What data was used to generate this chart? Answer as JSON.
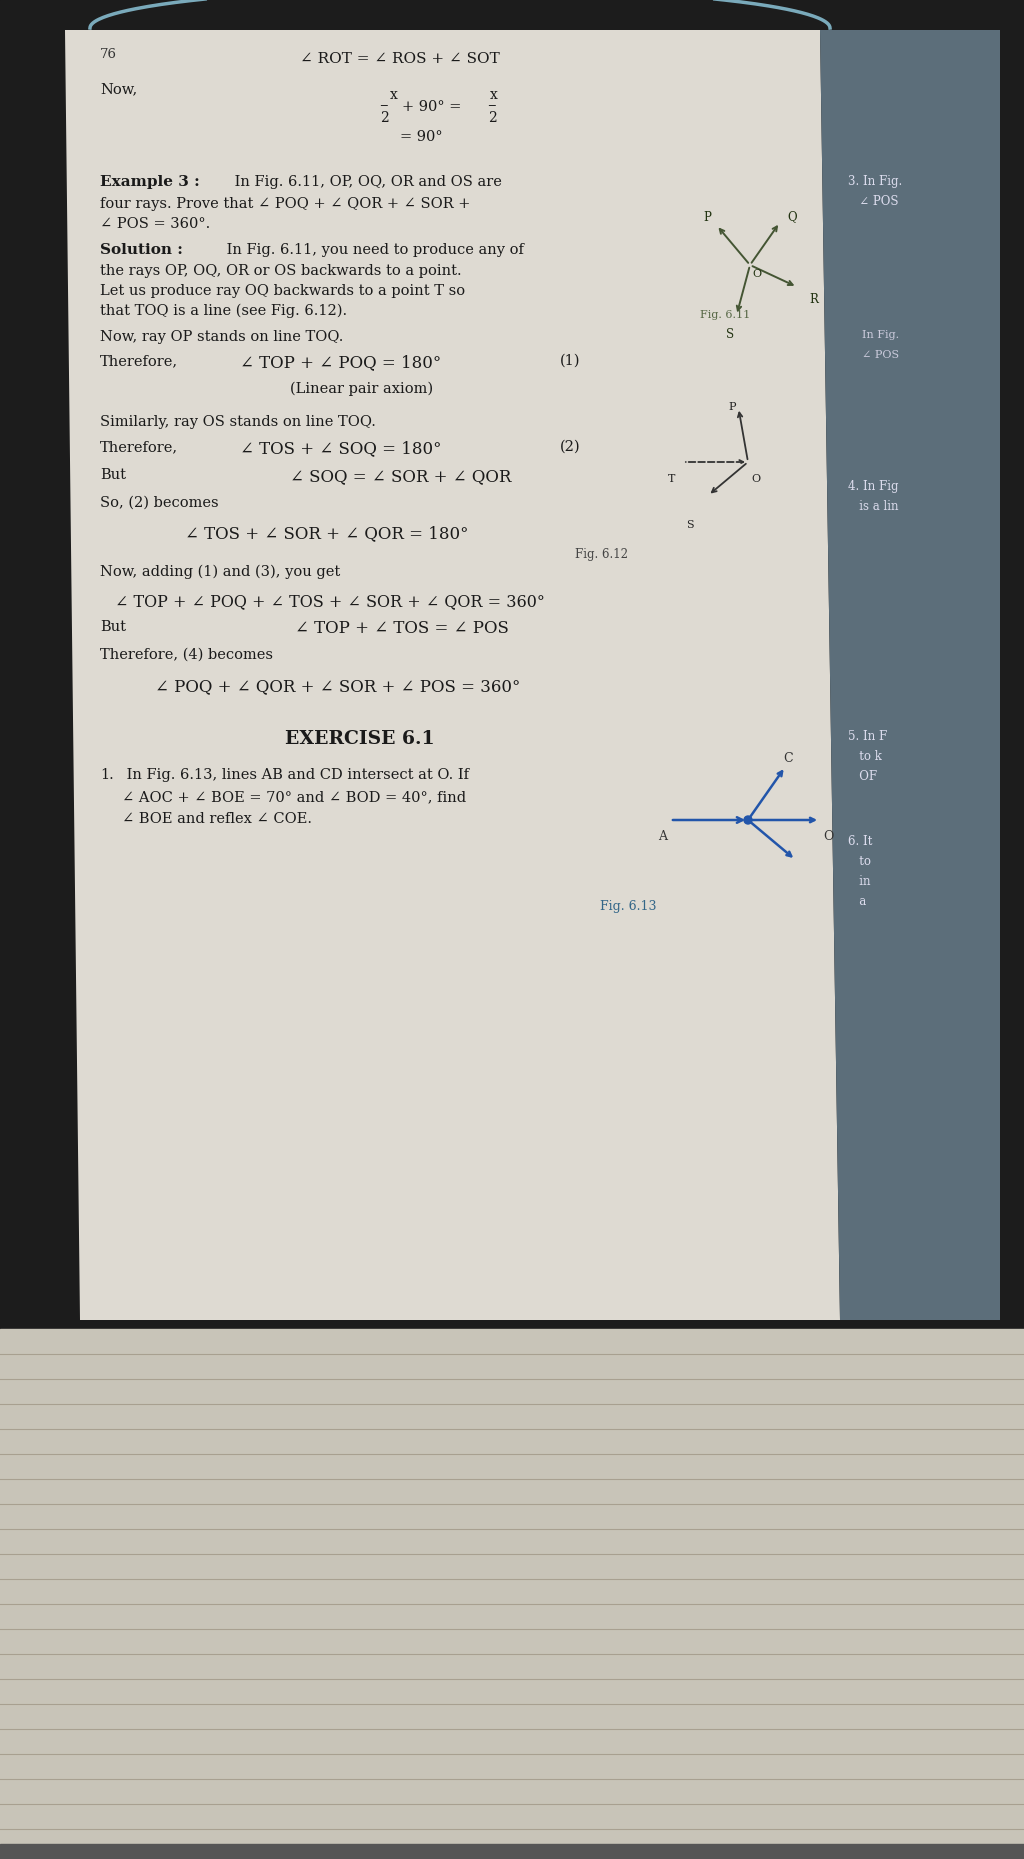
{
  "bg_color_top": "#1a1a1a",
  "bg_color_left": "#2a2a2a",
  "paper_color": "#d8d5cc",
  "page_color": "#e2dfd6",
  "sidebar_color": "#6b7d8a",
  "page_number": "76",
  "header": "∠ ROT = ∠ ROS + ∠ SOT",
  "now": "Now,",
  "frac_line1": "x",
  "frac_line2": "  + 90° =",
  "frac_denom": "2",
  "frac_x2": "x",
  "frac_denom2": "2",
  "eq_90": "= 90°",
  "ex3_bold": "Example 3 :",
  "ex3_text": " In Fig. 6.11, OP, OQ, OR and OS are",
  "ex3_line2": "four rays. Prove that ∠ POQ + ∠ QOR + ∠ SOR +",
  "ex3_line3": "∠ POS = 360°.",
  "sol_bold": "Solution :",
  "sol_text": " In Fig. 6.11, you need to produce any of",
  "sol_line2": "the rays OP, OQ, OR or OS backwards to a point.",
  "sol_line3": "Let us produce ray OQ backwards to a point T so",
  "sol_line4": "that TOQ is a line (see Fig. 6.12).",
  "now_ray": "Now, ray OP stands on line TOQ.",
  "therefore": "Therefore,",
  "eq1_math": "∠ TOP + ∠ POQ = 180°",
  "eq1_num": "(1)",
  "linear_pair": "(Linear pair axiom)",
  "similarly": "Similarly, ray OS stands on line TOQ.",
  "therefore2": "Therefore,",
  "eq2_math": "∠ TOS + ∠ SOQ = 180°",
  "eq2_num": "(2)",
  "but": "But",
  "eq3_math": "∠ SOQ = ∠ SOR + ∠ QOR",
  "so_becomes": "So, (2) becomes",
  "fig412_label": "Fig. 6.12",
  "eq4_math": "∠ TOS + ∠ SOR + ∠ QOR = 180°",
  "now_adding": "Now, adding (1) and (3), you get",
  "eq5_math": "∠ TOP + ∠ POQ + ∠ TOS + ∠ SOR + ∠ QOR = 360°",
  "but2": "But",
  "eq6_math": "∠ TOP + ∠ TOS = ∠ POS",
  "therefore4": "Therefore, (4) becomes",
  "eq7_math": "∠ POQ + ∠ QOR + ∠ SOR + ∠ POS = 360°",
  "exercise_title": "EXERCISE 6.1",
  "ex1_num": "1.",
  "ex1_line1": " In Fig. 6.13, lines AB and CD intersect at O. If",
  "ex1_line2": "∠ AOC + ∠ BOE = 70° and ∠ BOD = 40°, find",
  "ex1_line3": "∠ BOE and reflex ∠ COE.",
  "fig613_label": "Fig. 6.13",
  "sb_3a": "3. In Fig",
  "sb_3b": "   ∠ POS",
  "sb_4a": "4. In Fig",
  "sb_4b": "   is a lin",
  "sb_5a": "5. In F",
  "sb_5b": "   to k",
  "sb_5c": "   OF",
  "sb_6a": "6. It",
  "sb_6b": "   to",
  "sb_6c": "   in",
  "sb_6d": "   a"
}
